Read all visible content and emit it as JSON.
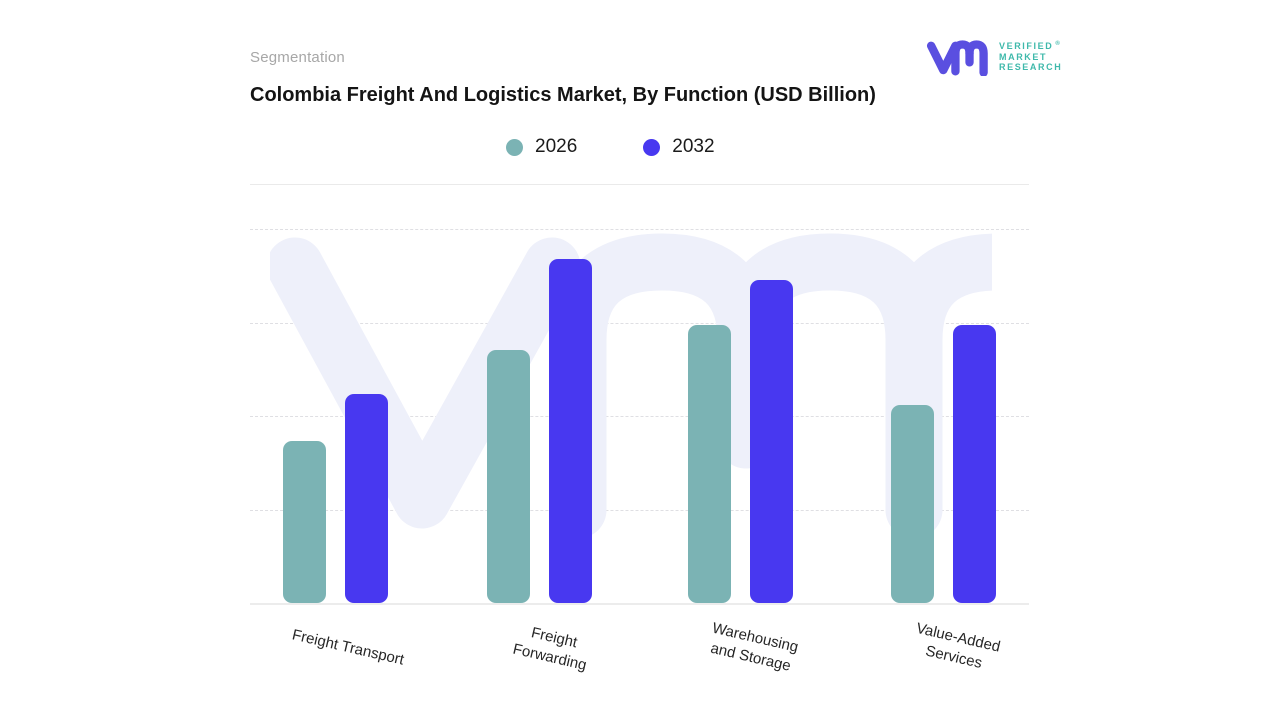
{
  "header": {
    "eyebrow": "Segmentation",
    "title": "Colombia Freight And Logistics Market, By Function (USD Billion)"
  },
  "logo": {
    "lines": [
      "VERIFIED",
      "MARKET",
      "RESEARCH"
    ],
    "registered_mark": "®",
    "glyph_color": "#5a4fe0",
    "text_color": "#3fb9ab"
  },
  "legend": {
    "items": [
      {
        "label": "2026",
        "color": "#7bb3b4"
      },
      {
        "label": "2032",
        "color": "#4838f0"
      }
    ]
  },
  "chart_data": {
    "type": "bar",
    "title": "Colombia Freight And Logistics Market, By Function (USD Billion)",
    "categories": [
      "Freight Transport",
      "Freight Forwarding",
      "Warehousing and Storage",
      "Value-Added Services"
    ],
    "categories_display": [
      [
        "Freight Transport"
      ],
      [
        "Freight",
        "Forwarding"
      ],
      [
        "Warehousing",
        "and Storage"
      ],
      [
        "Value-Added",
        "Services"
      ]
    ],
    "series": [
      {
        "name": "2026",
        "color": "#7bb3b4",
        "values": [
          1.73,
          2.71,
          2.97,
          2.12
        ]
      },
      {
        "name": "2032",
        "color": "#4838f0",
        "values": [
          2.24,
          3.68,
          3.45,
          2.97
        ]
      }
    ],
    "xlabel": "",
    "ylabel": "",
    "ylim": [
      0,
      4
    ],
    "y_axis_labels_visible": false,
    "gridlines": "horizontal-dashed",
    "legend_position": "top-center",
    "note": "No numeric axis labels shown; values are relative units estimated from gridlines (1 unit per gridline division)."
  },
  "watermark": {
    "name": "vm-monogram-watermark",
    "color": "#eef0fa"
  }
}
